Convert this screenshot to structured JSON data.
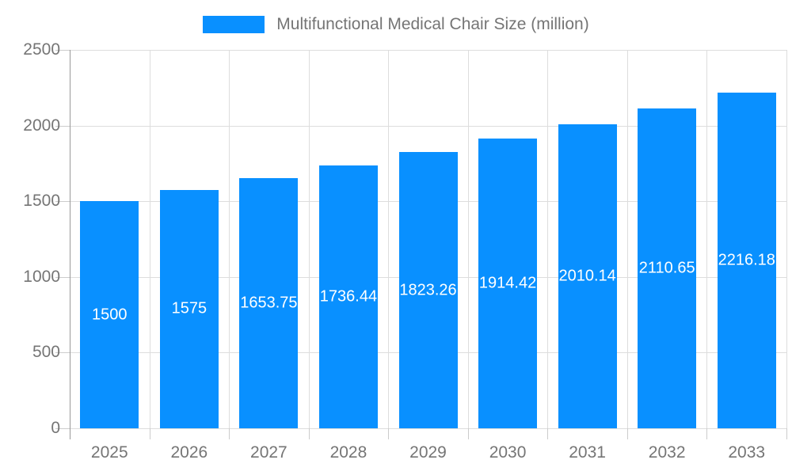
{
  "legend": {
    "label": "Multifunctional Medical Chair Size (million)"
  },
  "chart_data": {
    "type": "bar",
    "title": "Multifunctional Medical Chair Size (million)",
    "categories": [
      "2025",
      "2026",
      "2027",
      "2028",
      "2029",
      "2030",
      "2031",
      "2032",
      "2033"
    ],
    "values": [
      1500,
      1575,
      1653.75,
      1736.44,
      1823.26,
      1914.42,
      2010.14,
      2110.65,
      2216.18
    ],
    "value_labels": [
      "1500",
      "1575",
      "1653.75",
      "1736.44",
      "1823.26",
      "1914.42",
      "2010.14",
      "2110.65",
      "2216.18"
    ],
    "xlabel": "",
    "ylabel": "",
    "ylim": [
      0,
      2500
    ],
    "yticks": [
      0,
      500,
      1000,
      1500,
      2000,
      2500
    ],
    "grid": true,
    "legend_position": "top-center",
    "bar_label_position": "center"
  },
  "colors": {
    "bar": "#0990FF",
    "grid": "#DDDDDD",
    "axis_line": "#999999",
    "tick_mark": "#CCCCCC",
    "axis_text": "#757575",
    "title_text": "#757575",
    "bar_label_text": "#FFFFFF",
    "background": "#FFFFFF"
  }
}
